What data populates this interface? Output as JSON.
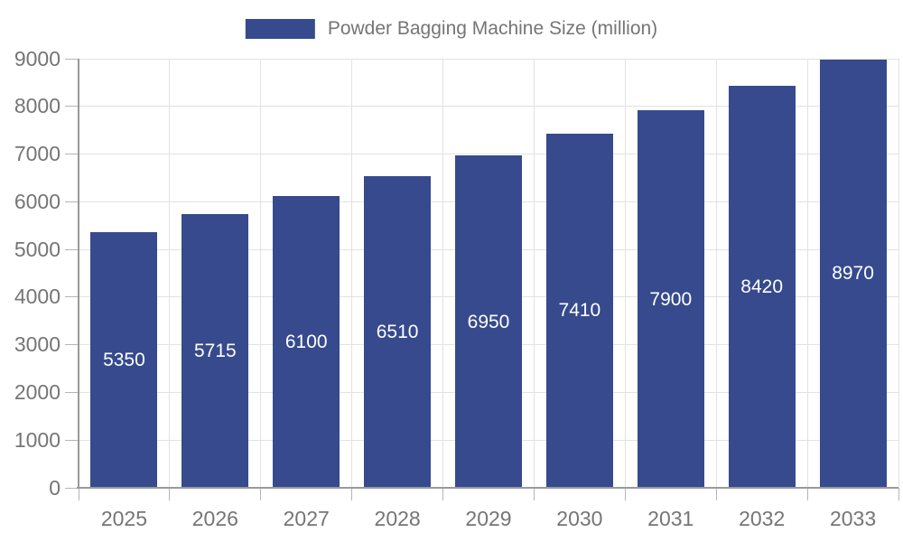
{
  "page": {
    "background": "#ffffff"
  },
  "legend": {
    "label": "Powder Bagging Machine Size (million)",
    "swatch_color": "#364a8d",
    "text_color": "#757575"
  },
  "chart_data": {
    "type": "bar",
    "title": "Powder Bagging Machine Size (million)",
    "categories": [
      "2025",
      "2026",
      "2027",
      "2028",
      "2029",
      "2030",
      "2031",
      "2032",
      "2033"
    ],
    "series": [
      {
        "name": "Powder Bagging Machine Size (million)",
        "values": [
          5350,
          5715,
          6100,
          6510,
          6950,
          7410,
          7900,
          8420,
          8970
        ],
        "color": "#364a8d"
      }
    ],
    "xlabel": "",
    "ylabel": "",
    "ylim": [
      0,
      9000
    ],
    "ytick_interval": 1000,
    "yticks": [
      0,
      1000,
      2000,
      3000,
      4000,
      5000,
      6000,
      7000,
      8000,
      9000
    ],
    "grid": true,
    "legend_position": "top-center",
    "value_label_position": "inside-center",
    "value_label_color": "#ffffff",
    "colors": {
      "bar": "#364a8d",
      "gridline": "#e2e2e2",
      "axis_line": "#9a9a9a",
      "tick": "#b5b5b5",
      "tick_label": "#757575"
    }
  }
}
